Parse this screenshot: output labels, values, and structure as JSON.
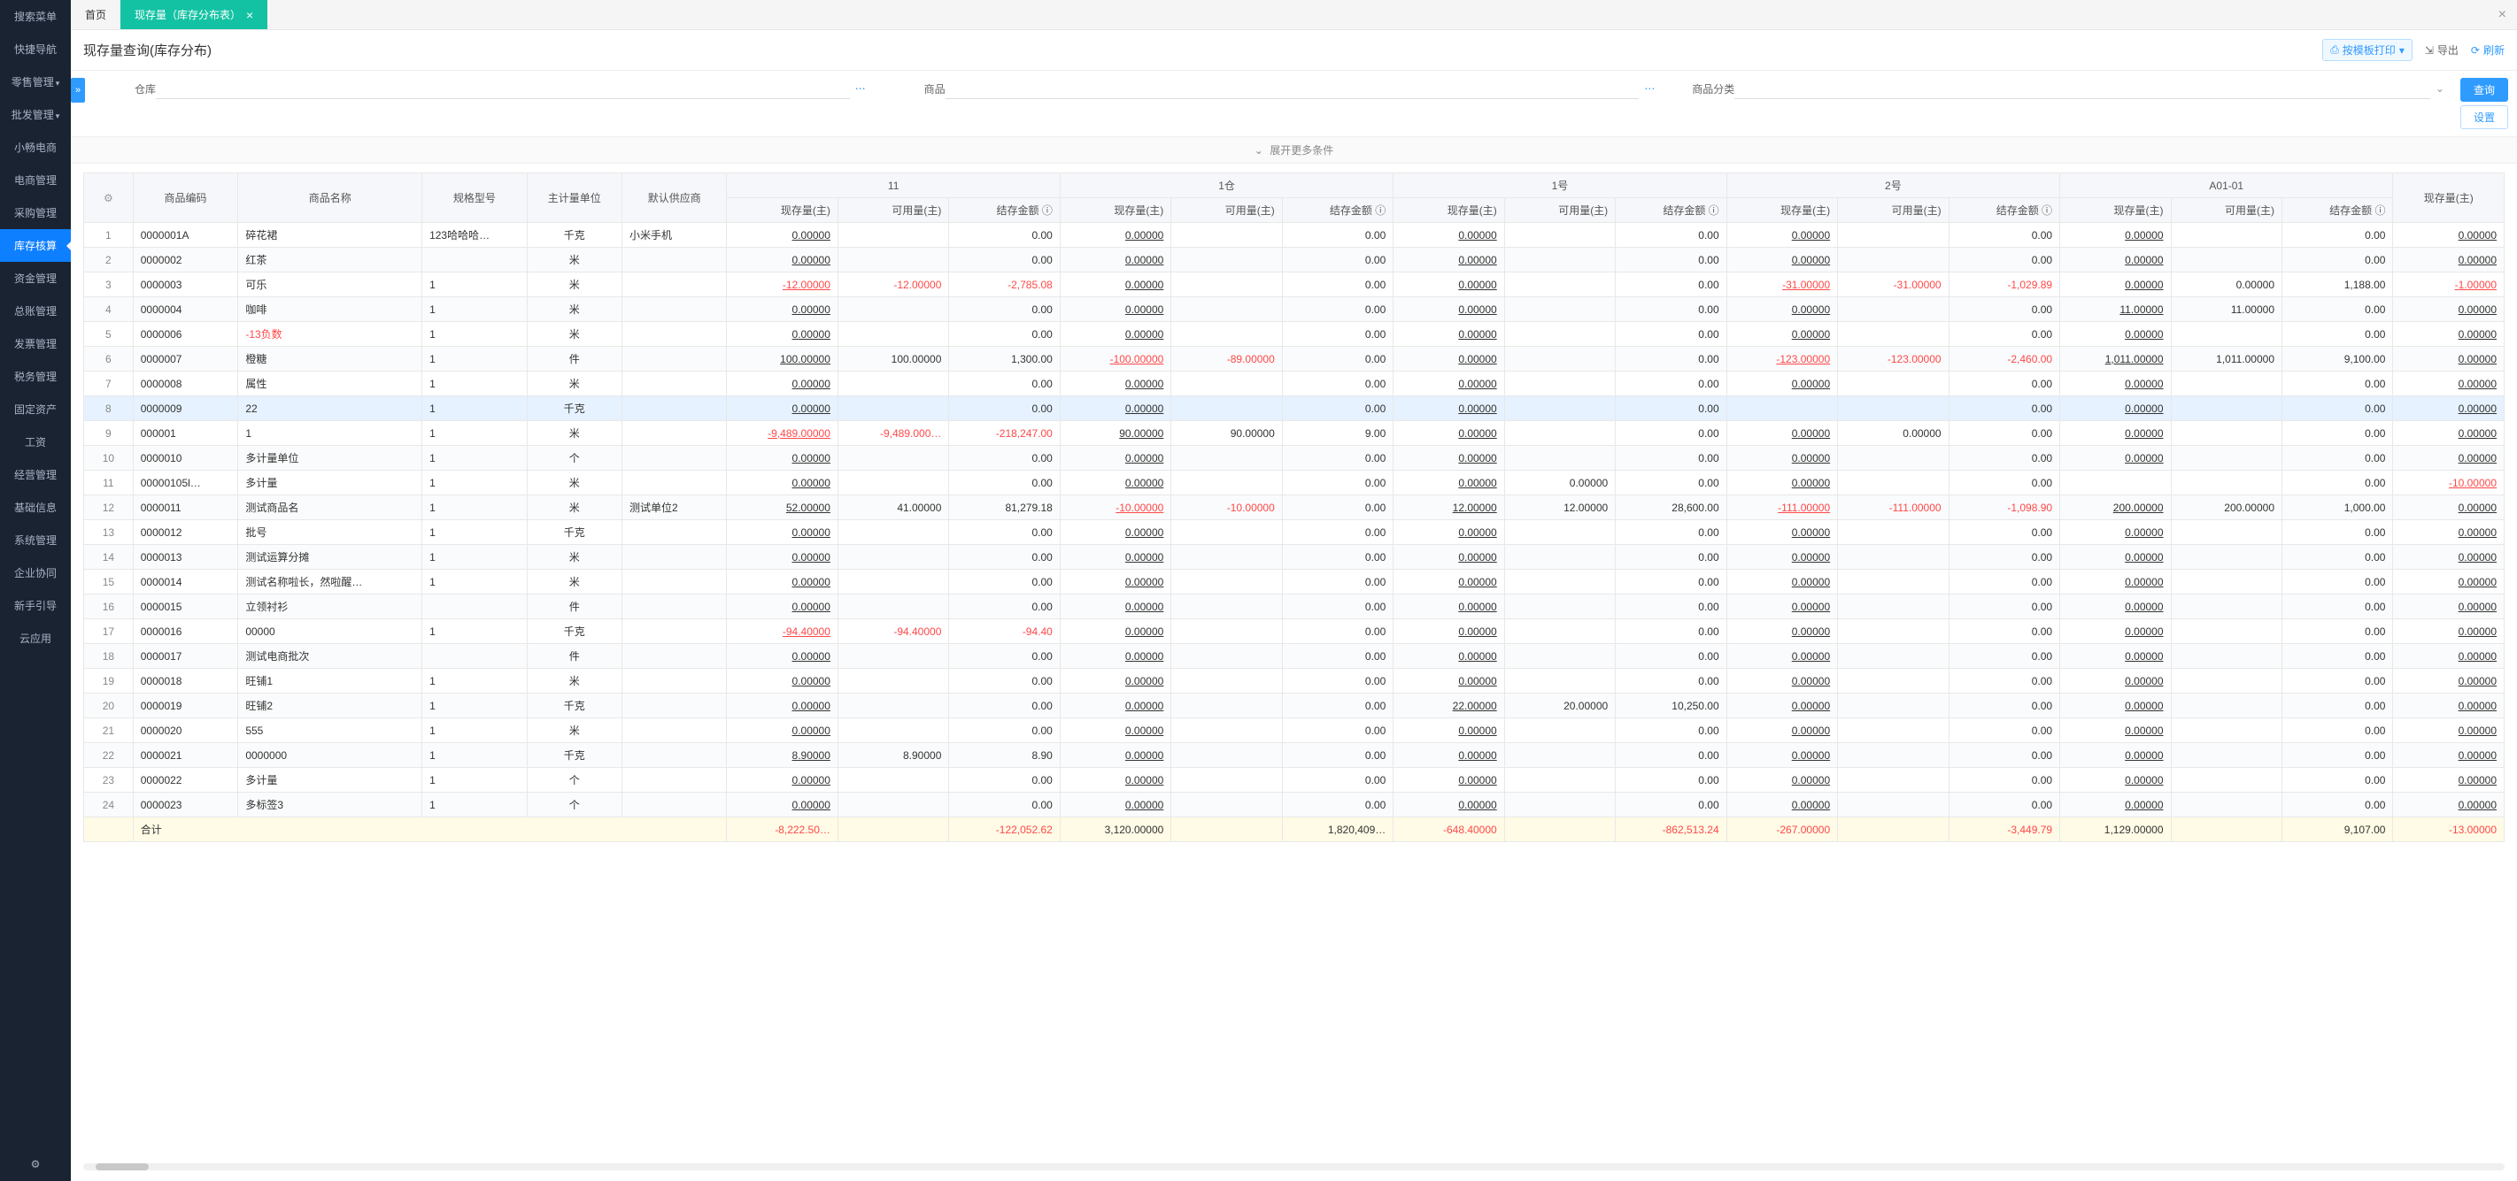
{
  "sidebar": {
    "items": [
      {
        "label": "搜索菜单",
        "caret": false
      },
      {
        "label": "快捷导航",
        "caret": false
      },
      {
        "label": "零售管理",
        "caret": true
      },
      {
        "label": "批发管理",
        "caret": true
      },
      {
        "label": "小畅电商",
        "caret": false
      },
      {
        "label": "电商管理",
        "caret": false
      },
      {
        "label": "采购管理",
        "caret": false
      },
      {
        "label": "库存核算",
        "caret": false,
        "active": true
      },
      {
        "label": "资金管理",
        "caret": false
      },
      {
        "label": "总账管理",
        "caret": false
      },
      {
        "label": "发票管理",
        "caret": false
      },
      {
        "label": "税务管理",
        "caret": false
      },
      {
        "label": "固定资产",
        "caret": false
      },
      {
        "label": "工资",
        "caret": false
      },
      {
        "label": "经营管理",
        "caret": false
      },
      {
        "label": "基础信息",
        "caret": false
      },
      {
        "label": "系统管理",
        "caret": false
      },
      {
        "label": "企业协同",
        "caret": false
      },
      {
        "label": "新手引导",
        "caret": false
      },
      {
        "label": "云应用",
        "caret": false
      }
    ]
  },
  "tabs": [
    {
      "label": "首页",
      "closable": false
    },
    {
      "label": "现存量（库存分布表）",
      "closable": true,
      "active": true
    }
  ],
  "page_title": "现存量查询(库存分布)",
  "header_actions": {
    "print": "按模板打印",
    "export": "导出",
    "refresh": "刷新"
  },
  "filters": {
    "warehouse": "仓库",
    "product": "商品",
    "category": "商品分类",
    "query_btn": "查询",
    "settings_btn": "设置",
    "expand_label": "展开更多条件"
  },
  "table": {
    "fixed_cols": [
      "商品编码",
      "商品名称",
      "规格型号",
      "主计量单位",
      "默认供应商"
    ],
    "warehouse_groups": [
      "11",
      "1仓",
      "1号",
      "2号",
      "A01-01"
    ],
    "sub_cols": [
      "现存量(主)",
      "可用量(主)",
      "结存金额 ⓘ"
    ],
    "extra_col": "现存量(主)",
    "rows": [
      {
        "idx": 1,
        "code": "0000001A",
        "name": "碎花裙",
        "spec": "123哈哈哈…",
        "unit": "千克",
        "supplier": "小米手机",
        "w": [
          [
            "0.00000",
            "",
            "0.00"
          ],
          [
            "0.00000",
            "",
            "0.00"
          ],
          [
            "0.00000",
            "",
            "0.00"
          ],
          [
            "0.00000",
            "",
            "0.00"
          ],
          [
            "0.00000",
            "",
            "0.00"
          ]
        ],
        "extra": "0.00000"
      },
      {
        "idx": 2,
        "code": "0000002",
        "name": "红茶",
        "spec": "",
        "unit": "米",
        "supplier": "",
        "w": [
          [
            "0.00000",
            "",
            "0.00"
          ],
          [
            "0.00000",
            "",
            "0.00"
          ],
          [
            "0.00000",
            "",
            "0.00"
          ],
          [
            "0.00000",
            "",
            "0.00"
          ],
          [
            "0.00000",
            "",
            "0.00"
          ]
        ],
        "extra": "0.00000"
      },
      {
        "idx": 3,
        "code": "0000003",
        "name": "可乐",
        "spec": "1",
        "unit": "米",
        "supplier": "",
        "w": [
          [
            "-12.00000",
            "-12.00000",
            "-2,785.08"
          ],
          [
            "0.00000",
            "",
            "0.00"
          ],
          [
            "0.00000",
            "",
            "0.00"
          ],
          [
            "-31.00000",
            "-31.00000",
            "-1,029.89"
          ],
          [
            "0.00000",
            "0.00000",
            "1,188.00"
          ]
        ],
        "extra": "-1.00000"
      },
      {
        "idx": 4,
        "code": "0000004",
        "name": "咖啡",
        "spec": "1",
        "unit": "米",
        "supplier": "",
        "w": [
          [
            "0.00000",
            "",
            "0.00"
          ],
          [
            "0.00000",
            "",
            "0.00"
          ],
          [
            "0.00000",
            "",
            "0.00"
          ],
          [
            "0.00000",
            "",
            "0.00"
          ],
          [
            "11.00000",
            "11.00000",
            "0.00"
          ]
        ],
        "extra": "0.00000"
      },
      {
        "idx": 5,
        "code": "0000006",
        "name": "-13负数",
        "name_neg": true,
        "spec": "1",
        "unit": "米",
        "supplier": "",
        "w": [
          [
            "0.00000",
            "",
            "0.00"
          ],
          [
            "0.00000",
            "",
            "0.00"
          ],
          [
            "0.00000",
            "",
            "0.00"
          ],
          [
            "0.00000",
            "",
            "0.00"
          ],
          [
            "0.00000",
            "",
            "0.00"
          ]
        ],
        "extra": "0.00000"
      },
      {
        "idx": 6,
        "code": "0000007",
        "name": "橙糖",
        "spec": "1",
        "unit": "件",
        "supplier": "",
        "w": [
          [
            "100.00000",
            "100.00000",
            "1,300.00"
          ],
          [
            "-100.00000",
            "-89.00000",
            "0.00"
          ],
          [
            "0.00000",
            "",
            "0.00"
          ],
          [
            "-123.00000",
            "-123.00000",
            "-2,460.00"
          ],
          [
            "1,011.00000",
            "1,011.00000",
            "9,100.00"
          ]
        ],
        "extra": "0.00000"
      },
      {
        "idx": 7,
        "code": "0000008",
        "name": "属性",
        "spec": "1",
        "unit": "米",
        "supplier": "",
        "w": [
          [
            "0.00000",
            "",
            "0.00"
          ],
          [
            "0.00000",
            "",
            "0.00"
          ],
          [
            "0.00000",
            "",
            "0.00"
          ],
          [
            "0.00000",
            "",
            "0.00"
          ],
          [
            "0.00000",
            "",
            "0.00"
          ]
        ],
        "extra": "0.00000"
      },
      {
        "idx": 8,
        "code": "0000009",
        "name": "22",
        "spec": "1",
        "unit": "千克",
        "supplier": "",
        "selected": true,
        "w": [
          [
            "0.00000",
            "",
            "0.00"
          ],
          [
            "0.00000",
            "",
            "0.00"
          ],
          [
            "0.00000",
            "",
            "0.00"
          ],
          [
            "",
            "",
            "0.00"
          ],
          [
            "0.00000",
            "",
            "0.00"
          ]
        ],
        "extra": "0.00000"
      },
      {
        "idx": 9,
        "code": "000001",
        "name": "1",
        "spec": "1",
        "unit": "米",
        "supplier": "",
        "w": [
          [
            "-9,489.00000",
            "-9,489.000…",
            "-218,247.00"
          ],
          [
            "90.00000",
            "90.00000",
            "9.00"
          ],
          [
            "0.00000",
            "",
            "0.00"
          ],
          [
            "0.00000",
            "0.00000",
            "0.00"
          ],
          [
            "0.00000",
            "",
            "0.00"
          ]
        ],
        "extra": "0.00000"
      },
      {
        "idx": 10,
        "code": "0000010",
        "name": "多计量单位",
        "spec": "1",
        "unit": "个",
        "supplier": "",
        "w": [
          [
            "0.00000",
            "",
            "0.00"
          ],
          [
            "0.00000",
            "",
            "0.00"
          ],
          [
            "0.00000",
            "",
            "0.00"
          ],
          [
            "0.00000",
            "",
            "0.00"
          ],
          [
            "0.00000",
            "",
            "0.00"
          ]
        ],
        "extra": "0.00000"
      },
      {
        "idx": 11,
        "code": "00000105l…",
        "name": "多计量",
        "spec": "1",
        "unit": "米",
        "supplier": "",
        "w": [
          [
            "0.00000",
            "",
            "0.00"
          ],
          [
            "0.00000",
            "",
            "0.00"
          ],
          [
            "0.00000",
            "0.00000",
            "0.00"
          ],
          [
            "0.00000",
            "",
            "0.00"
          ],
          [
            "",
            "",
            "0.00"
          ]
        ],
        "extra": "-10.00000"
      },
      {
        "idx": 12,
        "code": "0000011",
        "name": "测试商品名",
        "spec": "1",
        "unit": "米",
        "supplier": "测试单位2",
        "w": [
          [
            "52.00000",
            "41.00000",
            "81,279.18"
          ],
          [
            "-10.00000",
            "-10.00000",
            "0.00"
          ],
          [
            "12.00000",
            "12.00000",
            "28,600.00"
          ],
          [
            "-111.00000",
            "-111.00000",
            "-1,098.90"
          ],
          [
            "200.00000",
            "200.00000",
            "1,000.00"
          ]
        ],
        "extra": "0.00000"
      },
      {
        "idx": 13,
        "code": "0000012",
        "name": "批号",
        "spec": "1",
        "unit": "千克",
        "supplier": "",
        "w": [
          [
            "0.00000",
            "",
            "0.00"
          ],
          [
            "0.00000",
            "",
            "0.00"
          ],
          [
            "0.00000",
            "",
            "0.00"
          ],
          [
            "0.00000",
            "",
            "0.00"
          ],
          [
            "0.00000",
            "",
            "0.00"
          ]
        ],
        "extra": "0.00000"
      },
      {
        "idx": 14,
        "code": "0000013",
        "name": "测试运算分摊",
        "spec": "1",
        "unit": "米",
        "supplier": "",
        "w": [
          [
            "0.00000",
            "",
            "0.00"
          ],
          [
            "0.00000",
            "",
            "0.00"
          ],
          [
            "0.00000",
            "",
            "0.00"
          ],
          [
            "0.00000",
            "",
            "0.00"
          ],
          [
            "0.00000",
            "",
            "0.00"
          ]
        ],
        "extra": "0.00000"
      },
      {
        "idx": 15,
        "code": "0000014",
        "name": "测试名称啦长，然啦醒…",
        "spec": "1",
        "unit": "米",
        "supplier": "",
        "w": [
          [
            "0.00000",
            "",
            "0.00"
          ],
          [
            "0.00000",
            "",
            "0.00"
          ],
          [
            "0.00000",
            "",
            "0.00"
          ],
          [
            "0.00000",
            "",
            "0.00"
          ],
          [
            "0.00000",
            "",
            "0.00"
          ]
        ],
        "extra": "0.00000"
      },
      {
        "idx": 16,
        "code": "0000015",
        "name": "立领衬衫",
        "spec": "",
        "unit": "件",
        "supplier": "",
        "w": [
          [
            "0.00000",
            "",
            "0.00"
          ],
          [
            "0.00000",
            "",
            "0.00"
          ],
          [
            "0.00000",
            "",
            "0.00"
          ],
          [
            "0.00000",
            "",
            "0.00"
          ],
          [
            "0.00000",
            "",
            "0.00"
          ]
        ],
        "extra": "0.00000"
      },
      {
        "idx": 17,
        "code": "0000016",
        "name": "00000",
        "spec": "1",
        "unit": "千克",
        "supplier": "",
        "w": [
          [
            "-94.40000",
            "-94.40000",
            "-94.40"
          ],
          [
            "0.00000",
            "",
            "0.00"
          ],
          [
            "0.00000",
            "",
            "0.00"
          ],
          [
            "0.00000",
            "",
            "0.00"
          ],
          [
            "0.00000",
            "",
            "0.00"
          ]
        ],
        "extra": "0.00000"
      },
      {
        "idx": 18,
        "code": "0000017",
        "name": "测试电商批次",
        "spec": "",
        "unit": "件",
        "supplier": "",
        "w": [
          [
            "0.00000",
            "",
            "0.00"
          ],
          [
            "0.00000",
            "",
            "0.00"
          ],
          [
            "0.00000",
            "",
            "0.00"
          ],
          [
            "0.00000",
            "",
            "0.00"
          ],
          [
            "0.00000",
            "",
            "0.00"
          ]
        ],
        "extra": "0.00000"
      },
      {
        "idx": 19,
        "code": "0000018",
        "name": "旺铺1",
        "spec": "1",
        "unit": "米",
        "supplier": "",
        "w": [
          [
            "0.00000",
            "",
            "0.00"
          ],
          [
            "0.00000",
            "",
            "0.00"
          ],
          [
            "0.00000",
            "",
            "0.00"
          ],
          [
            "0.00000",
            "",
            "0.00"
          ],
          [
            "0.00000",
            "",
            "0.00"
          ]
        ],
        "extra": "0.00000"
      },
      {
        "idx": 20,
        "code": "0000019",
        "name": "旺铺2",
        "spec": "1",
        "unit": "千克",
        "supplier": "",
        "w": [
          [
            "0.00000",
            "",
            "0.00"
          ],
          [
            "0.00000",
            "",
            "0.00"
          ],
          [
            "22.00000",
            "20.00000",
            "10,250.00"
          ],
          [
            "0.00000",
            "",
            "0.00"
          ],
          [
            "0.00000",
            "",
            "0.00"
          ]
        ],
        "extra": "0.00000"
      },
      {
        "idx": 21,
        "code": "0000020",
        "name": "555",
        "spec": "1",
        "unit": "米",
        "supplier": "",
        "w": [
          [
            "0.00000",
            "",
            "0.00"
          ],
          [
            "0.00000",
            "",
            "0.00"
          ],
          [
            "0.00000",
            "",
            "0.00"
          ],
          [
            "0.00000",
            "",
            "0.00"
          ],
          [
            "0.00000",
            "",
            "0.00"
          ]
        ],
        "extra": "0.00000"
      },
      {
        "idx": 22,
        "code": "0000021",
        "name": "0000000",
        "spec": "1",
        "unit": "千克",
        "supplier": "",
        "w": [
          [
            "8.90000",
            "8.90000",
            "8.90"
          ],
          [
            "0.00000",
            "",
            "0.00"
          ],
          [
            "0.00000",
            "",
            "0.00"
          ],
          [
            "0.00000",
            "",
            "0.00"
          ],
          [
            "0.00000",
            "",
            "0.00"
          ]
        ],
        "extra": "0.00000"
      },
      {
        "idx": 23,
        "code": "0000022",
        "name": "多计量",
        "spec": "1",
        "unit": "个",
        "supplier": "",
        "w": [
          [
            "0.00000",
            "",
            "0.00"
          ],
          [
            "0.00000",
            "",
            "0.00"
          ],
          [
            "0.00000",
            "",
            "0.00"
          ],
          [
            "0.00000",
            "",
            "0.00"
          ],
          [
            "0.00000",
            "",
            "0.00"
          ]
        ],
        "extra": "0.00000"
      },
      {
        "idx": 24,
        "code": "0000023",
        "name": "多标签3",
        "spec": "1",
        "unit": "个",
        "supplier": "",
        "w": [
          [
            "0.00000",
            "",
            "0.00"
          ],
          [
            "0.00000",
            "",
            "0.00"
          ],
          [
            "0.00000",
            "",
            "0.00"
          ],
          [
            "0.00000",
            "",
            "0.00"
          ],
          [
            "0.00000",
            "",
            "0.00"
          ]
        ],
        "extra": "0.00000"
      }
    ],
    "totals": {
      "label": "合计",
      "w": [
        [
          "-8,222.50…",
          "",
          "-122,052.62"
        ],
        [
          "3,120.00000",
          "",
          "1,820,409…"
        ],
        [
          "-648.40000",
          "",
          "-862,513.24"
        ],
        [
          "-267.00000",
          "",
          "-3,449.79"
        ],
        [
          "1,129.00000",
          "",
          "9,107.00"
        ]
      ],
      "extra": "-13.00000"
    }
  }
}
